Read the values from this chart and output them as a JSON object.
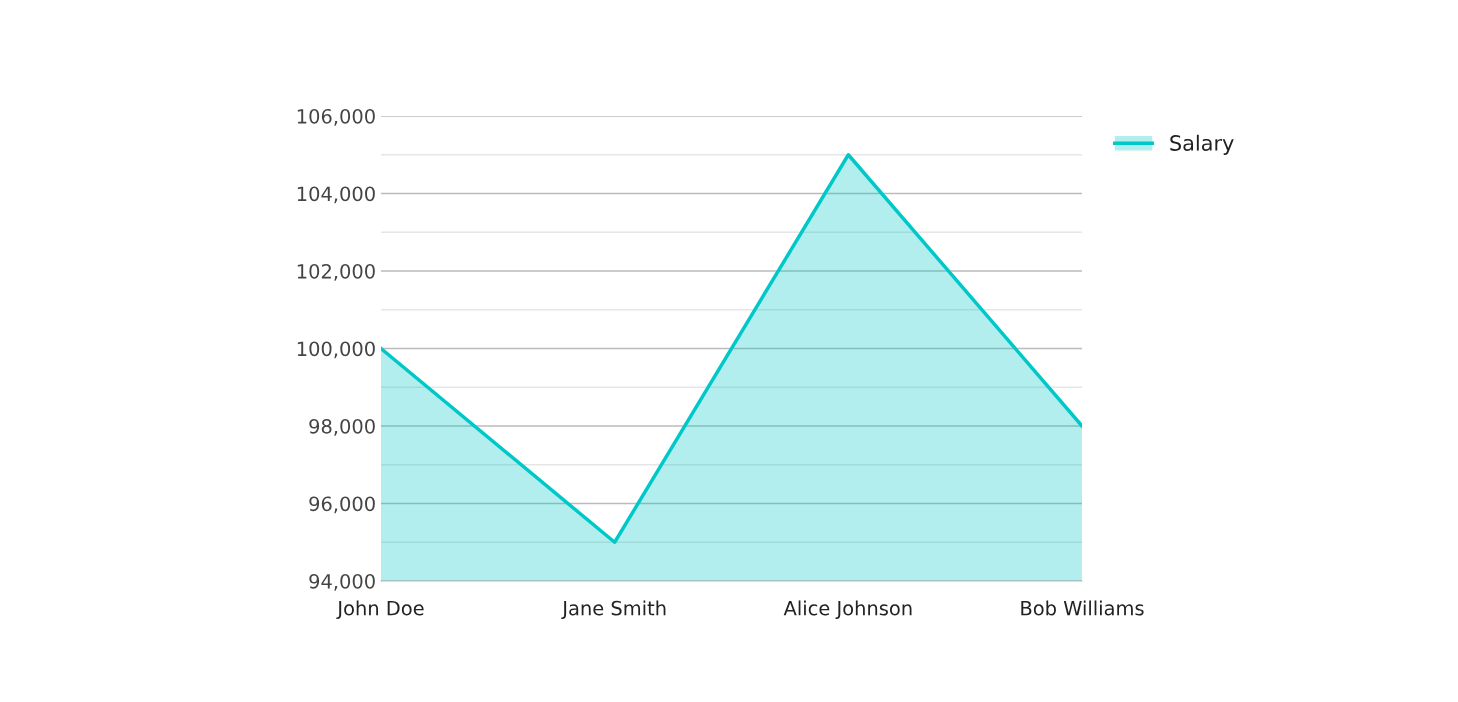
{
  "chart_data": {
    "type": "area",
    "categories": [
      "John Doe",
      "Jane Smith",
      "Alice Johnson",
      "Bob Williams"
    ],
    "series": [
      {
        "name": "Salary",
        "color": "#00c8c8",
        "values": [
          100000,
          95000,
          105000,
          98000
        ]
      }
    ],
    "ylim": [
      94000,
      106000
    ],
    "yticks": [
      {
        "value": 94000,
        "label": "94,000"
      },
      {
        "value": 95000,
        "label": null
      },
      {
        "value": 96000,
        "label": "96,000"
      },
      {
        "value": 97000,
        "label": null
      },
      {
        "value": 98000,
        "label": "98,000"
      },
      {
        "value": 99000,
        "label": null
      },
      {
        "value": 100000,
        "label": "100,000"
      },
      {
        "value": 101000,
        "label": null
      },
      {
        "value": 102000,
        "label": "102,000"
      },
      {
        "value": 103000,
        "label": null
      },
      {
        "value": 104000,
        "label": "104,000"
      },
      {
        "value": 105000,
        "label": null
      },
      {
        "value": 106000,
        "label": "106,000"
      }
    ],
    "grid": "y",
    "legend": "top right",
    "marker": "none",
    "line_style": "solid"
  }
}
